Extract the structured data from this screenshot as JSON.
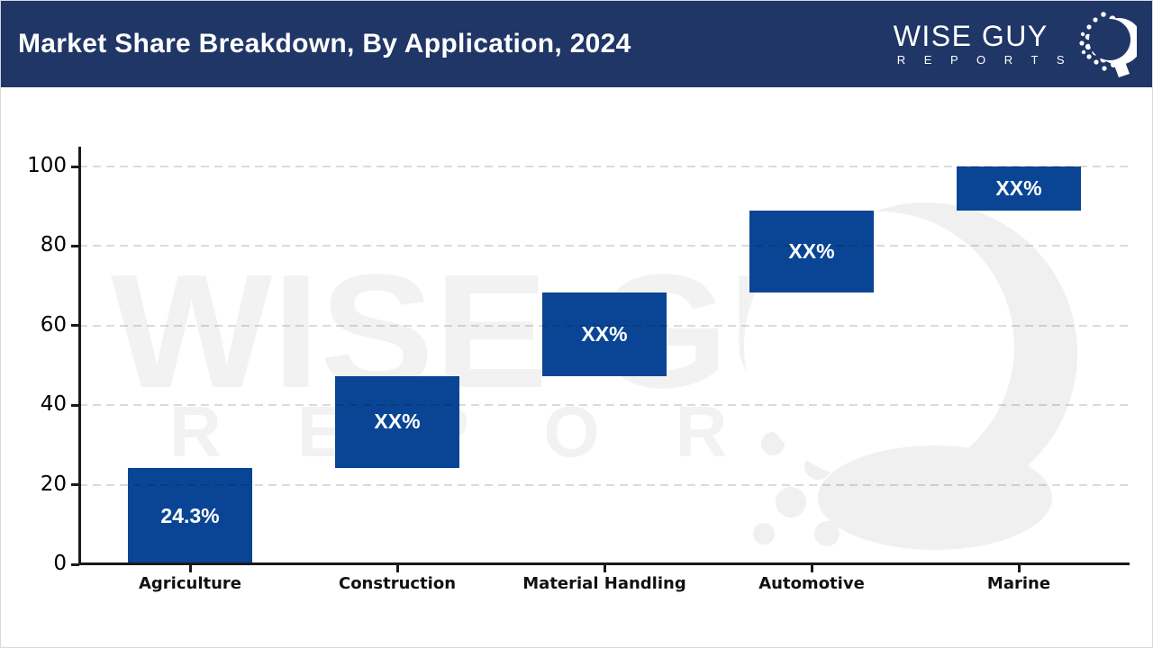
{
  "header": {
    "title": "Market Share Breakdown, By Application, 2024",
    "logo": {
      "line1": "WISE GUY",
      "line2": "R E P O R T S"
    }
  },
  "watermark": {
    "line1": "WISE GUY",
    "line2": "R E P O R T S"
  },
  "colors": {
    "header_bg": "#1f3666",
    "bar": "#0a4595",
    "bar_label_text": "#ffffff",
    "axis": "#1a1a1a",
    "gridline": "rgba(0,0,0,0.14)",
    "watermark": "#f2f2f2"
  },
  "chart_data": {
    "type": "bar",
    "subtype": "waterfall",
    "title": "Market Share Breakdown, By Application, 2024",
    "categories": [
      "Agriculture",
      "Construction",
      "Material Handling",
      "Automotive",
      "Marine"
    ],
    "segments": [
      {
        "category": "Agriculture",
        "start": 0,
        "end": 24.3,
        "label": "24.3%"
      },
      {
        "category": "Construction",
        "start": 24.3,
        "end": 47.4,
        "label": "XX%"
      },
      {
        "category": "Material Handling",
        "start": 47.4,
        "end": 68.3,
        "label": "XX%"
      },
      {
        "category": "Automotive",
        "start": 68.3,
        "end": 89.0,
        "label": "XX%"
      },
      {
        "category": "Marine",
        "start": 89.0,
        "end": 100.0,
        "label": "XX%"
      }
    ],
    "xlabel": "",
    "ylabel": "",
    "yticks": [
      0,
      20,
      40,
      60,
      80,
      100
    ],
    "ylim": [
      0,
      105
    ],
    "grid": "horizontal dashed",
    "legend": "none",
    "bar_color": "#0a4595"
  }
}
